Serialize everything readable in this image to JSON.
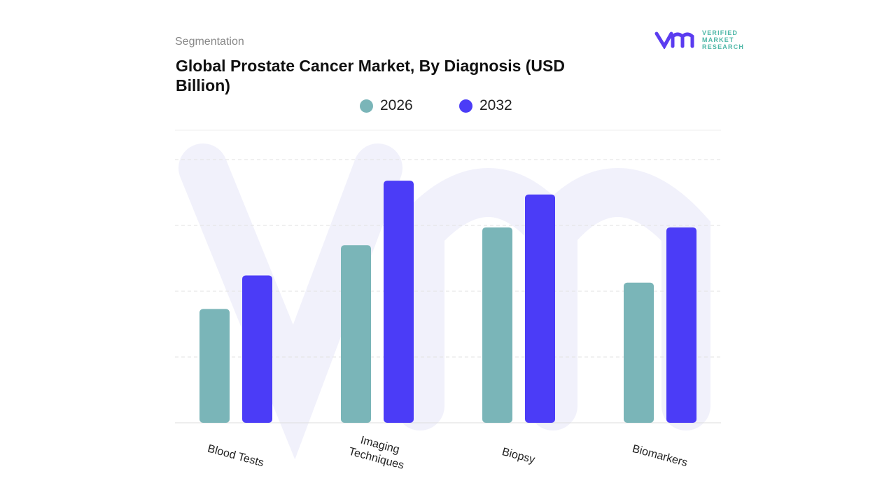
{
  "header": {
    "segment_label": "Segmentation",
    "logo_text": "VERIFIED MARKET RESEARCH"
  },
  "chart_data": {
    "type": "bar",
    "title": "Global Prostate Cancer Market, By Diagnosis (USD Billion)",
    "categories": [
      "Blood Tests",
      "Imaging Techniques",
      "Biopsy",
      "Biomarkers"
    ],
    "series": [
      {
        "name": "2026",
        "color": "#7ab5b8",
        "values": [
          1.73,
          2.7,
          2.97,
          2.13
        ]
      },
      {
        "name": "2032",
        "color": "#4b3cf7",
        "values": [
          2.24,
          3.68,
          3.47,
          2.97
        ]
      }
    ],
    "ylim": [
      0,
      4
    ],
    "grid": true,
    "legend": "top",
    "xlabel": "",
    "ylabel": ""
  }
}
